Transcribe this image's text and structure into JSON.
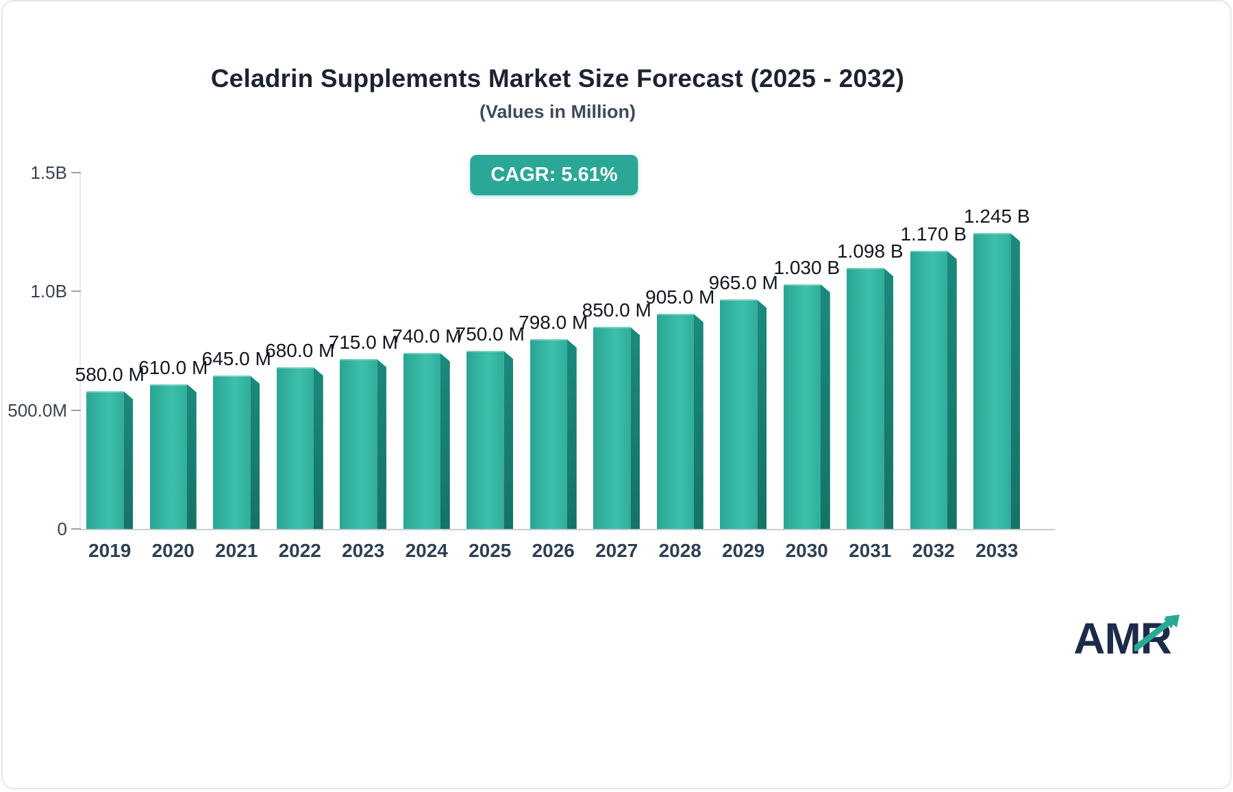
{
  "header": {
    "title": "Celadrin Supplements Market Size Forecast (2025 - 2032)",
    "subtitle": "(Values in Million)",
    "cagr_badge": "CAGR: 5.61%"
  },
  "logo": {
    "text": "AMR"
  },
  "colors": {
    "bar_main": "#32b4a0",
    "bar_side": "#17806f",
    "badge_bg": "#2aa796",
    "axis": "#c8cdd3",
    "title_text": "#1d2330",
    "logo_text": "#1c2b4a",
    "logo_arrow": "#2aa996"
  },
  "chart_data": {
    "type": "bar",
    "title": "Celadrin Supplements Market Size Forecast (2025 - 2032)",
    "subtitle": "(Values in Million)",
    "unit_note": "Values in Million",
    "cagr": "5.61%",
    "categories": [
      "2019",
      "2020",
      "2021",
      "2022",
      "2023",
      "2024",
      "2025",
      "2026",
      "2027",
      "2028",
      "2029",
      "2030",
      "2031",
      "2032",
      "2033"
    ],
    "values": [
      580,
      610,
      645,
      680,
      715,
      740,
      750,
      798,
      850,
      905,
      965,
      1030,
      1098,
      1170,
      1245
    ],
    "value_labels": [
      "580.0 M",
      "610.0 M",
      "645.0 M",
      "680.0 M",
      "715.0 M",
      "740.0 M",
      "750.0 M",
      "798.0 M",
      "850.0 M",
      "905.0 M",
      "965.0 M",
      "1.030 B",
      "1.098 B",
      "1.170 B",
      "1.245 B"
    ],
    "xlabel": "",
    "ylabel": "",
    "ylim": [
      0,
      1500
    ],
    "yticks": [
      {
        "value": 0,
        "label": "0"
      },
      {
        "value": 500,
        "label": "500.0M"
      },
      {
        "value": 1000,
        "label": "1.0B"
      },
      {
        "value": 1500,
        "label": "1.5B"
      }
    ],
    "grid": false,
    "legend": "none"
  }
}
